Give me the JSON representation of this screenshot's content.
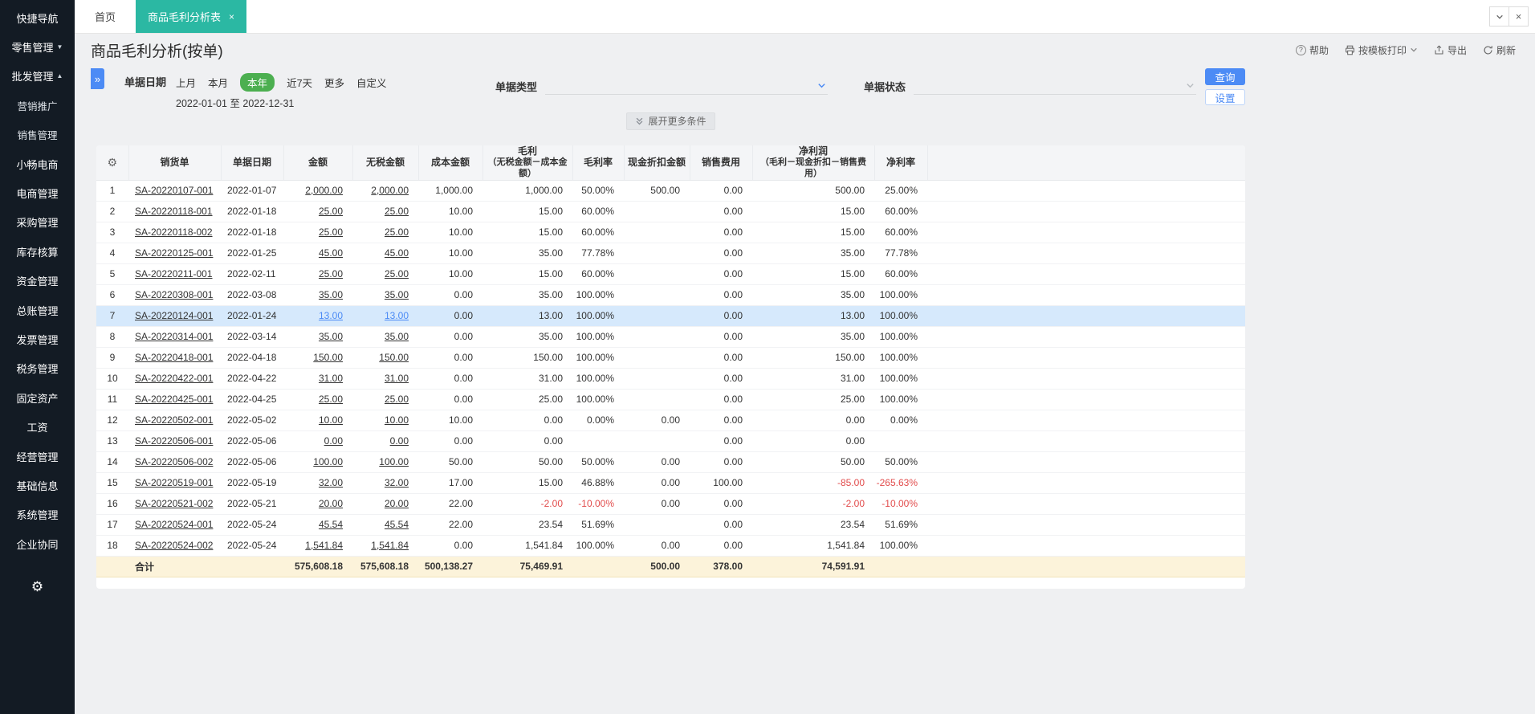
{
  "icons": {
    "gear": "⚙",
    "collapse": "»",
    "close": "×",
    "help_mark": "?"
  },
  "tabbar": {
    "home_tab": "首页",
    "active_tab": "商品毛利分析表"
  },
  "sidebar": {
    "items": [
      {
        "label": "快捷导航"
      },
      {
        "label": "零售管理",
        "arrow": "down"
      },
      {
        "label": "批发管理",
        "arrow": "up"
      },
      {
        "label": "营销推广",
        "sub": true
      },
      {
        "label": "销售管理",
        "sub": true
      },
      {
        "label": "小畅电商"
      },
      {
        "label": "电商管理"
      },
      {
        "label": "采购管理"
      },
      {
        "label": "库存核算"
      },
      {
        "label": "资金管理"
      },
      {
        "label": "总账管理"
      },
      {
        "label": "发票管理"
      },
      {
        "label": "税务管理"
      },
      {
        "label": "固定资产"
      },
      {
        "label": "工资"
      },
      {
        "label": "经营管理"
      },
      {
        "label": "基础信息"
      },
      {
        "label": "系统管理"
      },
      {
        "label": "企业协同"
      }
    ]
  },
  "header": {
    "title": "商品毛利分析(按单)",
    "help": "帮助",
    "print": "按模板打印",
    "export": "导出",
    "refresh": "刷新"
  },
  "filters": {
    "date_label": "单据日期",
    "date_options": [
      "上月",
      "本月",
      "本年",
      "近7天",
      "更多",
      "自定义"
    ],
    "date_selected": "本年",
    "date_range": "2022-01-01 至 2022-12-31",
    "doc_type_label": "单据类型",
    "doc_status_label": "单据状态",
    "search_button": "查询",
    "settings_button": "设置",
    "expand_more": "展开更多条件"
  },
  "table": {
    "columns": [
      {
        "label": "销货单"
      },
      {
        "label": "单据日期"
      },
      {
        "label": "金额"
      },
      {
        "label": "无税金额"
      },
      {
        "label": "成本金额"
      },
      {
        "label": "毛利",
        "sub": "（无税金额－成本金额）"
      },
      {
        "label": "毛利率"
      },
      {
        "label": "现金折扣金额"
      },
      {
        "label": "销售费用"
      },
      {
        "label": "净利润",
        "sub": "（毛利－现金折扣－销售费用）"
      },
      {
        "label": "净利率"
      }
    ],
    "rows": [
      {
        "code": "SA-20220107-001",
        "date": "2022-01-07",
        "amount": "2,000.00",
        "net_amount": "2,000.00",
        "cost": "1,000.00",
        "gross": "1,000.00",
        "gross_rate": "50.00%",
        "cash_discount": "500.00",
        "sell_expense": "0.00",
        "net_profit": "500.00",
        "net_rate": "25.00%"
      },
      {
        "code": "SA-20220118-001",
        "date": "2022-01-18",
        "amount": "25.00",
        "net_amount": "25.00",
        "cost": "10.00",
        "gross": "15.00",
        "gross_rate": "60.00%",
        "cash_discount": "",
        "sell_expense": "0.00",
        "net_profit": "15.00",
        "net_rate": "60.00%"
      },
      {
        "code": "SA-20220118-002",
        "date": "2022-01-18",
        "amount": "25.00",
        "net_amount": "25.00",
        "cost": "10.00",
        "gross": "15.00",
        "gross_rate": "60.00%",
        "cash_discount": "",
        "sell_expense": "0.00",
        "net_profit": "15.00",
        "net_rate": "60.00%"
      },
      {
        "code": "SA-20220125-001",
        "date": "2022-01-25",
        "amount": "45.00",
        "net_amount": "45.00",
        "cost": "10.00",
        "gross": "35.00",
        "gross_rate": "77.78%",
        "cash_discount": "",
        "sell_expense": "0.00",
        "net_profit": "35.00",
        "net_rate": "77.78%"
      },
      {
        "code": "SA-20220211-001",
        "date": "2022-02-11",
        "amount": "25.00",
        "net_amount": "25.00",
        "cost": "10.00",
        "gross": "15.00",
        "gross_rate": "60.00%",
        "cash_discount": "",
        "sell_expense": "0.00",
        "net_profit": "15.00",
        "net_rate": "60.00%"
      },
      {
        "code": "SA-20220308-001",
        "date": "2022-03-08",
        "amount": "35.00",
        "net_amount": "35.00",
        "cost": "0.00",
        "gross": "35.00",
        "gross_rate": "100.00%",
        "cash_discount": "",
        "sell_expense": "0.00",
        "net_profit": "35.00",
        "net_rate": "100.00%"
      },
      {
        "code": "SA-20220124-001",
        "date": "2022-01-24",
        "amount": "13.00",
        "net_amount": "13.00",
        "cost": "0.00",
        "gross": "13.00",
        "gross_rate": "100.00%",
        "cash_discount": "",
        "sell_expense": "0.00",
        "net_profit": "13.00",
        "net_rate": "100.00%",
        "selected": true
      },
      {
        "code": "SA-20220314-001",
        "date": "2022-03-14",
        "amount": "35.00",
        "net_amount": "35.00",
        "cost": "0.00",
        "gross": "35.00",
        "gross_rate": "100.00%",
        "cash_discount": "",
        "sell_expense": "0.00",
        "net_profit": "35.00",
        "net_rate": "100.00%"
      },
      {
        "code": "SA-20220418-001",
        "date": "2022-04-18",
        "amount": "150.00",
        "net_amount": "150.00",
        "cost": "0.00",
        "gross": "150.00",
        "gross_rate": "100.00%",
        "cash_discount": "",
        "sell_expense": "0.00",
        "net_profit": "150.00",
        "net_rate": "100.00%"
      },
      {
        "code": "SA-20220422-001",
        "date": "2022-04-22",
        "amount": "31.00",
        "net_amount": "31.00",
        "cost": "0.00",
        "gross": "31.00",
        "gross_rate": "100.00%",
        "cash_discount": "",
        "sell_expense": "0.00",
        "net_profit": "31.00",
        "net_rate": "100.00%"
      },
      {
        "code": "SA-20220425-001",
        "date": "2022-04-25",
        "amount": "25.00",
        "net_amount": "25.00",
        "cost": "0.00",
        "gross": "25.00",
        "gross_rate": "100.00%",
        "cash_discount": "",
        "sell_expense": "0.00",
        "net_profit": "25.00",
        "net_rate": "100.00%"
      },
      {
        "code": "SA-20220502-001",
        "date": "2022-05-02",
        "amount": "10.00",
        "net_amount": "10.00",
        "cost": "10.00",
        "gross": "0.00",
        "gross_rate": "0.00%",
        "cash_discount": "0.00",
        "sell_expense": "0.00",
        "net_profit": "0.00",
        "net_rate": "0.00%"
      },
      {
        "code": "SA-20220506-001",
        "date": "2022-05-06",
        "amount": "0.00",
        "net_amount": "0.00",
        "cost": "0.00",
        "gross": "0.00",
        "gross_rate": "",
        "cash_discount": "",
        "sell_expense": "0.00",
        "net_profit": "0.00",
        "net_rate": ""
      },
      {
        "code": "SA-20220506-002",
        "date": "2022-05-06",
        "amount": "100.00",
        "net_amount": "100.00",
        "cost": "50.00",
        "gross": "50.00",
        "gross_rate": "50.00%",
        "cash_discount": "0.00",
        "sell_expense": "0.00",
        "net_profit": "50.00",
        "net_rate": "50.00%"
      },
      {
        "code": "SA-20220519-001",
        "date": "2022-05-19",
        "amount": "32.00",
        "net_amount": "32.00",
        "cost": "17.00",
        "gross": "15.00",
        "gross_rate": "46.88%",
        "cash_discount": "0.00",
        "sell_expense": "100.00",
        "net_profit": "-85.00",
        "net_rate": "-265.63%"
      },
      {
        "code": "SA-20220521-002",
        "date": "2022-05-21",
        "amount": "20.00",
        "net_amount": "20.00",
        "cost": "22.00",
        "gross": "-2.00",
        "gross_rate": "-10.00%",
        "cash_discount": "0.00",
        "sell_expense": "0.00",
        "net_profit": "-2.00",
        "net_rate": "-10.00%"
      },
      {
        "code": "SA-20220524-001",
        "date": "2022-05-24",
        "amount": "45.54",
        "net_amount": "45.54",
        "cost": "22.00",
        "gross": "23.54",
        "gross_rate": "51.69%",
        "cash_discount": "",
        "sell_expense": "0.00",
        "net_profit": "23.54",
        "net_rate": "51.69%"
      },
      {
        "code": "SA-20220524-002",
        "date": "2022-05-24",
        "amount": "1,541.84",
        "net_amount": "1,541.84",
        "cost": "0.00",
        "gross": "1,541.84",
        "gross_rate": "100.00%",
        "cash_discount": "0.00",
        "sell_expense": "0.00",
        "net_profit": "1,541.84",
        "net_rate": "100.00%"
      }
    ],
    "total": {
      "label": "合计",
      "amount": "575,608.18",
      "net_amount": "575,608.18",
      "cost": "500,138.27",
      "gross": "75,469.91",
      "gross_rate": "",
      "cash_discount": "500.00",
      "sell_expense": "378.00",
      "net_profit": "74,591.91",
      "net_rate": ""
    }
  }
}
